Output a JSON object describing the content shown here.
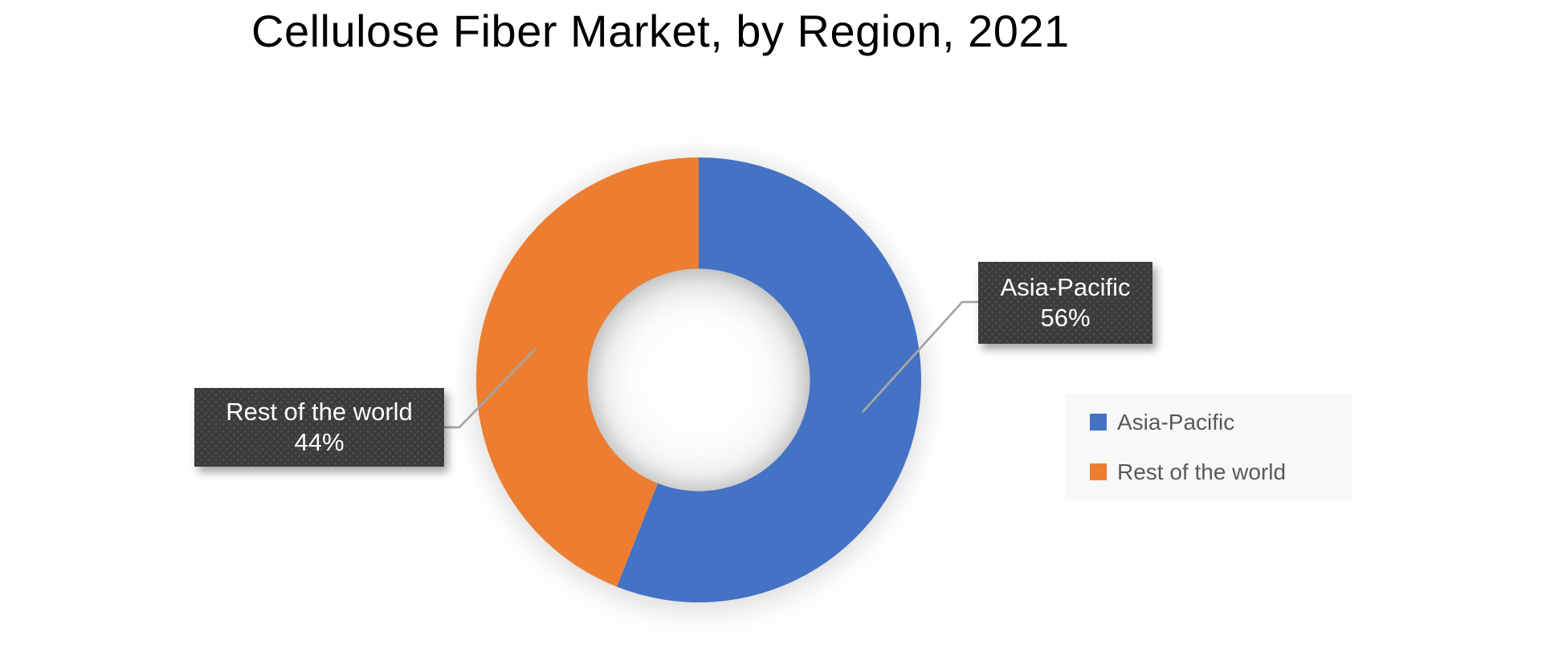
{
  "title": "Cellulose Fiber Market, by Region, 2021",
  "chart_data": {
    "type": "pie",
    "subtype": "donut",
    "title": "Cellulose Fiber Market, by Region, 2021",
    "categories": [
      "Asia-Pacific",
      "Rest of the world"
    ],
    "values": [
      56,
      44
    ],
    "value_unit": "%",
    "series_colors": [
      "#4472C4",
      "#ED7D31"
    ],
    "start_angle_deg": 0,
    "direction": "clockwise",
    "inner_radius_ratio": 0.5,
    "legend_position": "center-right",
    "data_labels": [
      "Asia-Pacific 56%",
      "Rest of the world 44%"
    ]
  },
  "callouts": [
    {
      "name": "Asia-Pacific",
      "line1": "Asia-Pacific",
      "line2": "56%"
    },
    {
      "name": "Rest of the world",
      "line1": "Rest of the world",
      "line2": "44%"
    }
  ],
  "legend": {
    "items": [
      {
        "label": "Asia-Pacific",
        "color": "#4472C4"
      },
      {
        "label": "Rest of the world",
        "color": "#ED7D31"
      }
    ]
  },
  "styles": {
    "title_color": "#000000",
    "leader_line_color": "#a6a6a6",
    "callout_bg": "#3b3b3b",
    "callout_text_color": "#ffffff",
    "legend_bg": "#f8f8f8",
    "legend_text_color": "#595959"
  }
}
